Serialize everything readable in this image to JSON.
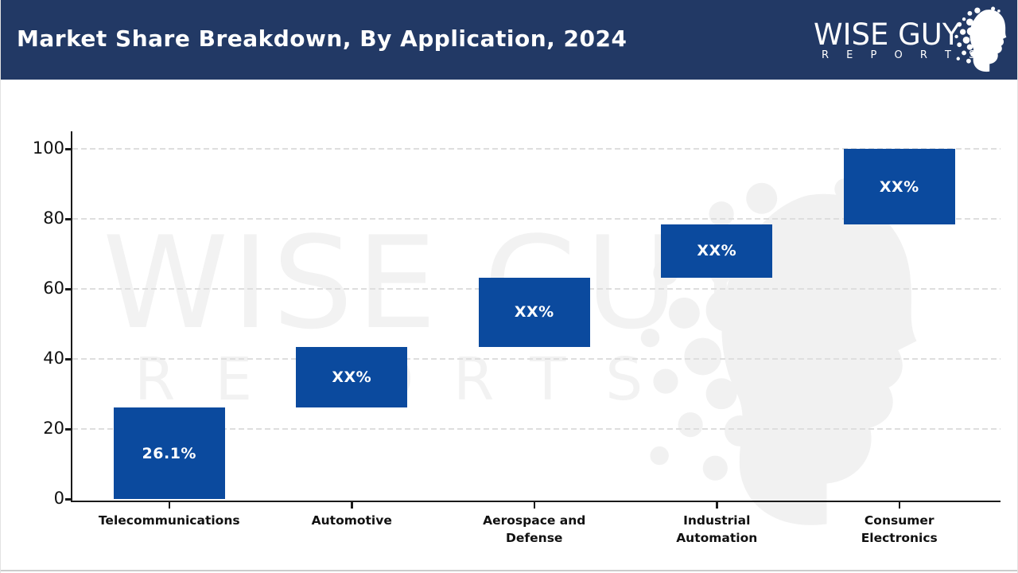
{
  "header": {
    "title": "Market Share Breakdown, By Application, 2024",
    "bg_color": "#223965",
    "logo": {
      "line1": "WISE GUY",
      "line2": "R E P O R T S"
    }
  },
  "watermark": {
    "line1": "WISE GUY",
    "line2": "REPORTS"
  },
  "chart_data": {
    "type": "bar",
    "subtype": "waterfall",
    "title": "Market Share Breakdown, By Application, 2024",
    "xlabel": "",
    "ylabel": "",
    "categories": [
      "Telecommunications",
      "Automotive",
      "Aerospace and\nDefense",
      "Industrial\nAutomation",
      "Consumer\nElectronics"
    ],
    "segments": [
      {
        "category": "Telecommunications",
        "start": 0,
        "end": 26.1,
        "label": "26.1%"
      },
      {
        "category": "Automotive",
        "start": 26.1,
        "end": 43.5,
        "label": "XX%"
      },
      {
        "category": "Aerospace and Defense",
        "start": 43.5,
        "end": 63.2,
        "label": "XX%"
      },
      {
        "category": "Industrial Automation",
        "start": 63.2,
        "end": 78.4,
        "label": "XX%"
      },
      {
        "category": "Consumer Electronics",
        "start": 78.4,
        "end": 100,
        "label": "XX%"
      }
    ],
    "yticks": [
      0,
      20,
      40,
      60,
      80,
      100
    ],
    "ylim": [
      0,
      105
    ],
    "grid": "horizontal-dashed",
    "bar_color": "#0b4a9e",
    "bar_label_color": "#ffffff",
    "axis_color": "#1a1a1a",
    "gridline_color": "#dedede"
  }
}
